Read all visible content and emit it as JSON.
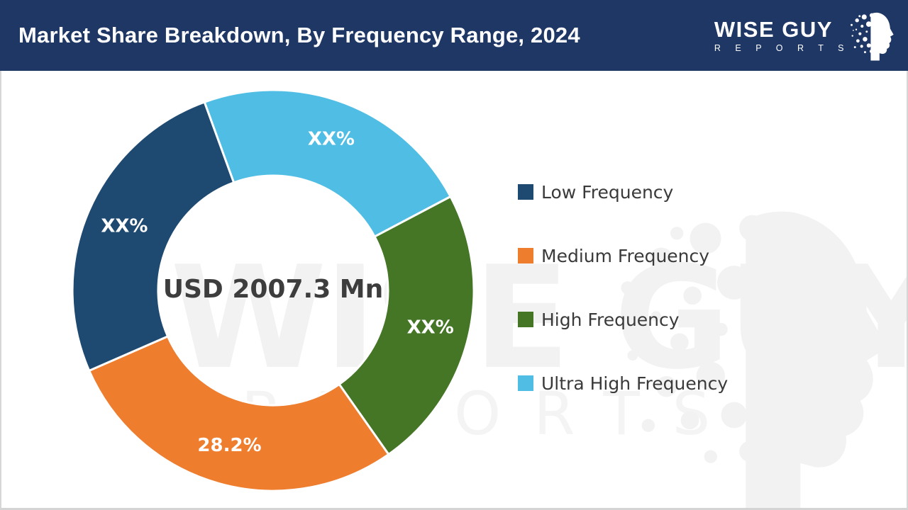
{
  "header": {
    "title": "Market Share Breakdown, By Frequency Range, 2024",
    "logo": {
      "line1": "WISE GUY",
      "line2": "R E P O R T S"
    }
  },
  "watermark": {
    "line1": "WISE GUY",
    "line2": "REPORTS"
  },
  "colors": {
    "header_bg": "#1f3765",
    "low": "#1e4a71",
    "medium": "#ee7d2e",
    "high": "#447626",
    "ultra_high": "#4fbde4",
    "slice_separator": "#ffffff",
    "center_text": "#3d3d3d",
    "legend_text": "#3a3a3a"
  },
  "chart_data": {
    "type": "pie",
    "subtype": "donut",
    "title": "Market Share Breakdown, By Frequency Range, 2024",
    "center_label": "USD 2007.3 Mn",
    "legend_position": "right",
    "start_angle_deg": -20,
    "inner_radius_ratio": 0.573,
    "segments": [
      {
        "name": "Ultra High Frequency",
        "slice_label": "XX%",
        "value_pct_est": 22.8,
        "color": "#4fbde4"
      },
      {
        "name": "High Frequency",
        "slice_label": "XX%",
        "value_pct_est": 23.0,
        "color": "#447626"
      },
      {
        "name": "Medium Frequency",
        "slice_label": "28.2%",
        "value_pct_est": 28.2,
        "color": "#ee7d2e"
      },
      {
        "name": "Low Frequency",
        "slice_label": "XX%",
        "value_pct_est": 26.0,
        "color": "#1e4a71"
      }
    ]
  },
  "legend": {
    "items": [
      {
        "label": "Low Frequency",
        "color": "#1e4a71"
      },
      {
        "label": "Medium Frequency",
        "color": "#ee7d2e"
      },
      {
        "label": "High Frequency",
        "color": "#447626"
      },
      {
        "label": "Ultra High Frequency",
        "color": "#4fbde4"
      }
    ]
  }
}
